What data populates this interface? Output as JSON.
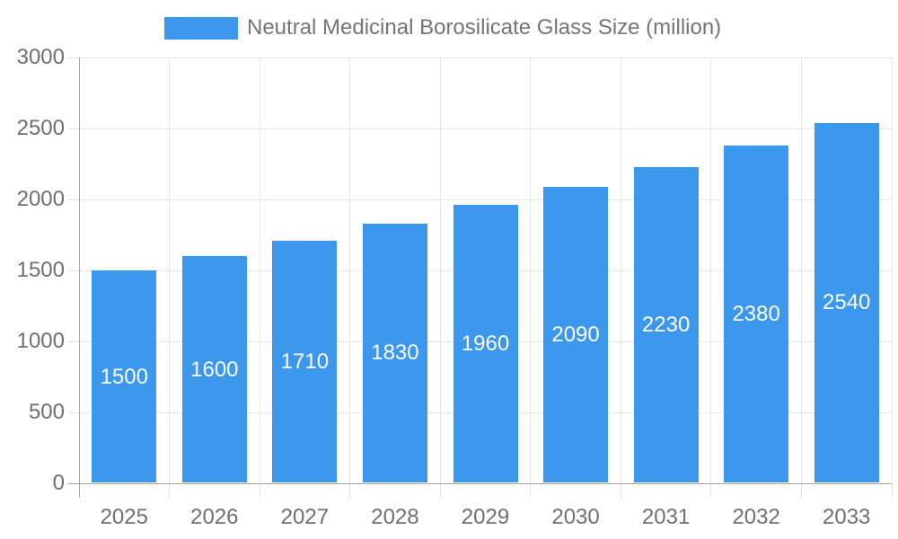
{
  "chart_data": {
    "type": "bar",
    "title": "Neutral Medicinal Borosilicate Glass Size (million)",
    "categories": [
      "2025",
      "2026",
      "2027",
      "2028",
      "2029",
      "2030",
      "2031",
      "2032",
      "2033"
    ],
    "series": [
      {
        "name": "Neutral Medicinal Borosilicate Glass Size (million)",
        "values": [
          1500,
          1600,
          1710,
          1830,
          1960,
          2090,
          2230,
          2380,
          2540
        ]
      }
    ],
    "values": [
      1500,
      1600,
      1710,
      1830,
      1960,
      2090,
      2230,
      2380,
      2540
    ],
    "bar_value_labels": [
      "1500",
      "1600",
      "1710",
      "1830",
      "1960",
      "2090",
      "2230",
      "2380",
      "2540"
    ],
    "xlabel": "",
    "ylabel": "",
    "ylim": [
      0,
      3000
    ],
    "yticks": [
      0,
      500,
      1000,
      1500,
      2000,
      2500,
      3000
    ],
    "ytick_labels": [
      "0",
      "500",
      "1000",
      "1500",
      "2000",
      "2500",
      "3000"
    ],
    "grid": true,
    "legend_position": "top",
    "colors": {
      "bar": "#3B98EC",
      "bar_label": "#FFFFFF",
      "gridline": "#E6E6E6",
      "tick": "#E0E0E0",
      "axis_line": "#A3A3A3",
      "axis_text": "#6F6F6F",
      "legend_text": "#757575",
      "background": "#FFFFFF"
    }
  }
}
